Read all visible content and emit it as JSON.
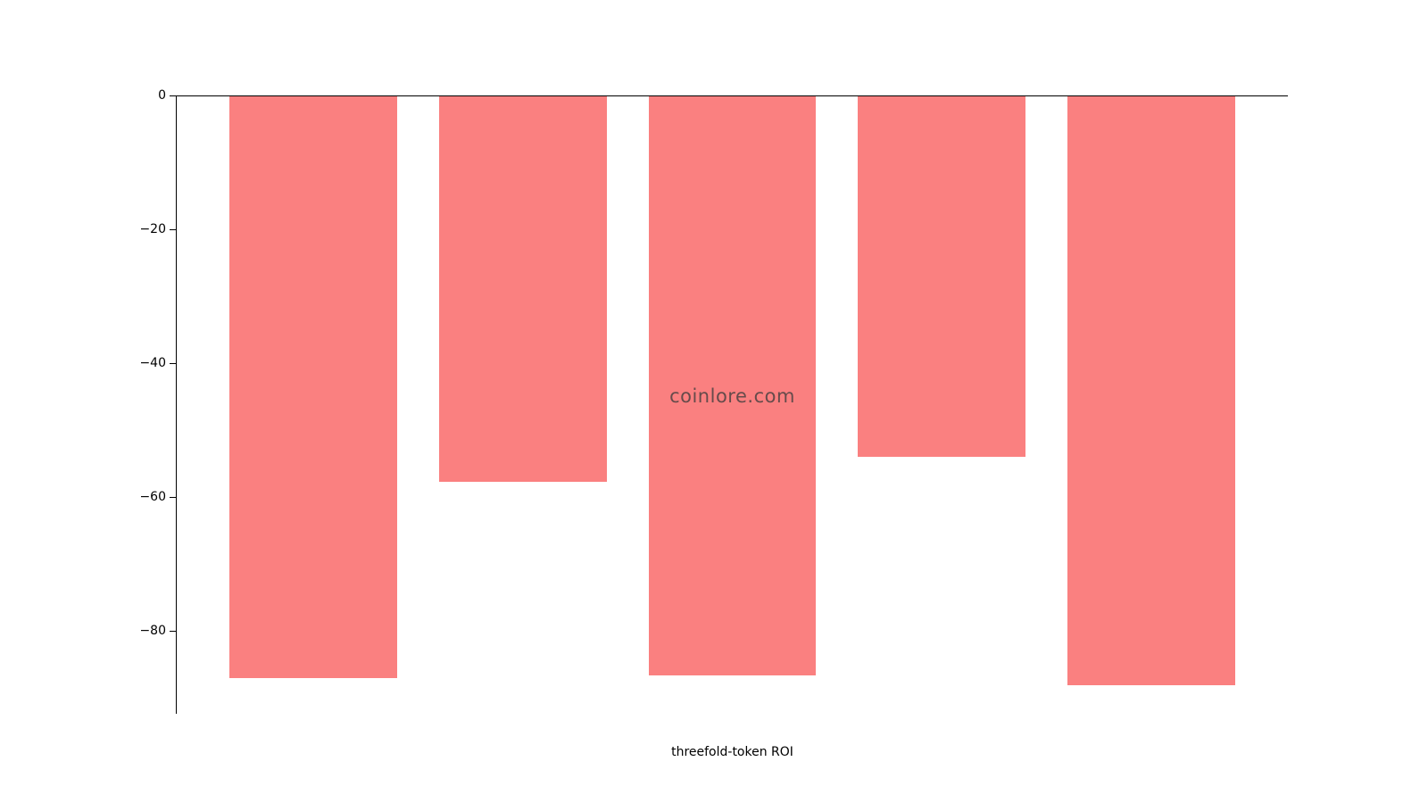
{
  "chart_data": {
    "type": "bar",
    "categories": [
      "",
      "",
      "",
      "",
      ""
    ],
    "values": [
      -87.0,
      -57.6,
      -86.5,
      -53.9,
      -88.0
    ],
    "title": "",
    "xlabel": "threefold-token ROI",
    "ylabel": "",
    "ylim": [
      -92.3,
      0
    ],
    "xlim_units": [
      -0.65,
      4.65
    ],
    "yticks": [
      0,
      -20,
      -40,
      -60,
      -80
    ],
    "ytick_labels": [
      "0",
      "−20",
      "−40",
      "−60",
      "−80"
    ],
    "bar_color": "#fa8080",
    "axis_color": "#000000",
    "background_color": "#ffffff",
    "grid": false,
    "legend": null,
    "bar_width_fraction": 0.8,
    "watermark": "coinlore.com",
    "watermark_color": "#3c3c3c"
  }
}
